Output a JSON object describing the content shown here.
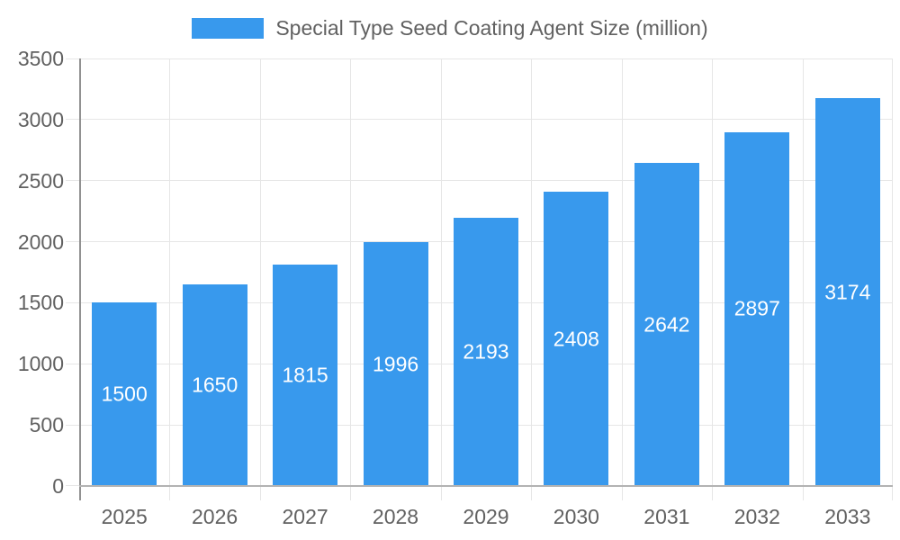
{
  "legend": {
    "label": "Special Type Seed Coating Agent Size (million)"
  },
  "chart_data": {
    "type": "bar",
    "title": "Special Type Seed Coating Agent Size (million)",
    "series_name": "Special Type Seed Coating Agent Size (million)",
    "categories": [
      "2025",
      "2026",
      "2027",
      "2028",
      "2029",
      "2030",
      "2031",
      "2032",
      "2033"
    ],
    "values": [
      1500,
      1650,
      1815,
      1996,
      2193,
      2408,
      2642,
      2897,
      3174
    ],
    "bar_labels": [
      "1500",
      "1650",
      "1815",
      "1996",
      "2193",
      "2408",
      "2642",
      "2897",
      "3174"
    ],
    "xlabel": "",
    "ylabel": "",
    "ylim": [
      0,
      3500
    ],
    "yticks": [
      0,
      500,
      1000,
      1500,
      2000,
      2500,
      3000,
      3500
    ],
    "grid": true,
    "legend_position": "top"
  },
  "colors": {
    "bar": "#3899ED",
    "grid": "#E6E6E6",
    "axis_y_line": "#919191",
    "axis_x_line": "#B3B3B3",
    "label_text": "#616161",
    "value_text": "#FFFFFF",
    "background": "#FFFFFF"
  }
}
